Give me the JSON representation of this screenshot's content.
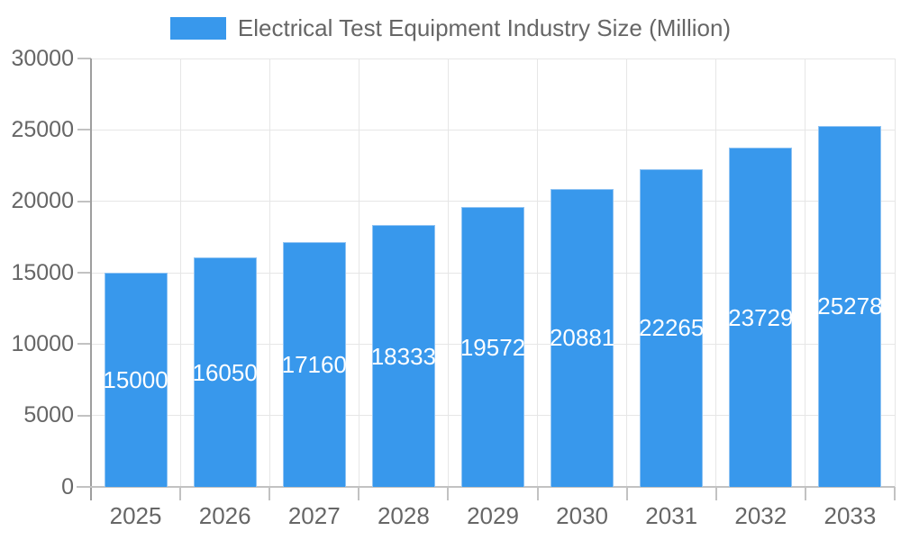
{
  "chart_data": {
    "type": "bar",
    "title": "Electrical Test Equipment Industry Size (Million)",
    "categories": [
      "2025",
      "2026",
      "2027",
      "2028",
      "2029",
      "2030",
      "2031",
      "2032",
      "2033"
    ],
    "values": [
      15000,
      16050,
      17160,
      18333,
      19572,
      20881,
      22265,
      23729,
      25278
    ],
    "ylim": [
      0,
      30000
    ],
    "yticks": [
      0,
      5000,
      10000,
      15000,
      20000,
      25000,
      30000
    ],
    "grid": true,
    "legend_position": "top",
    "legend": {
      "label": "Electrical Test Equipment Industry Size (Million)",
      "swatch_color": "#3898ec"
    },
    "colors": {
      "bar_fill": "#3898ec",
      "bar_border": "#8fc3f3",
      "bar_value_text": "#ffffff",
      "grid_line": "#e6e6e6",
      "y_axis_line": "#9e9e9e",
      "x_axis_line": "#c2c2c2",
      "tick_label_text": "#666666",
      "legend_text": "#666666",
      "background": "#ffffff"
    }
  }
}
